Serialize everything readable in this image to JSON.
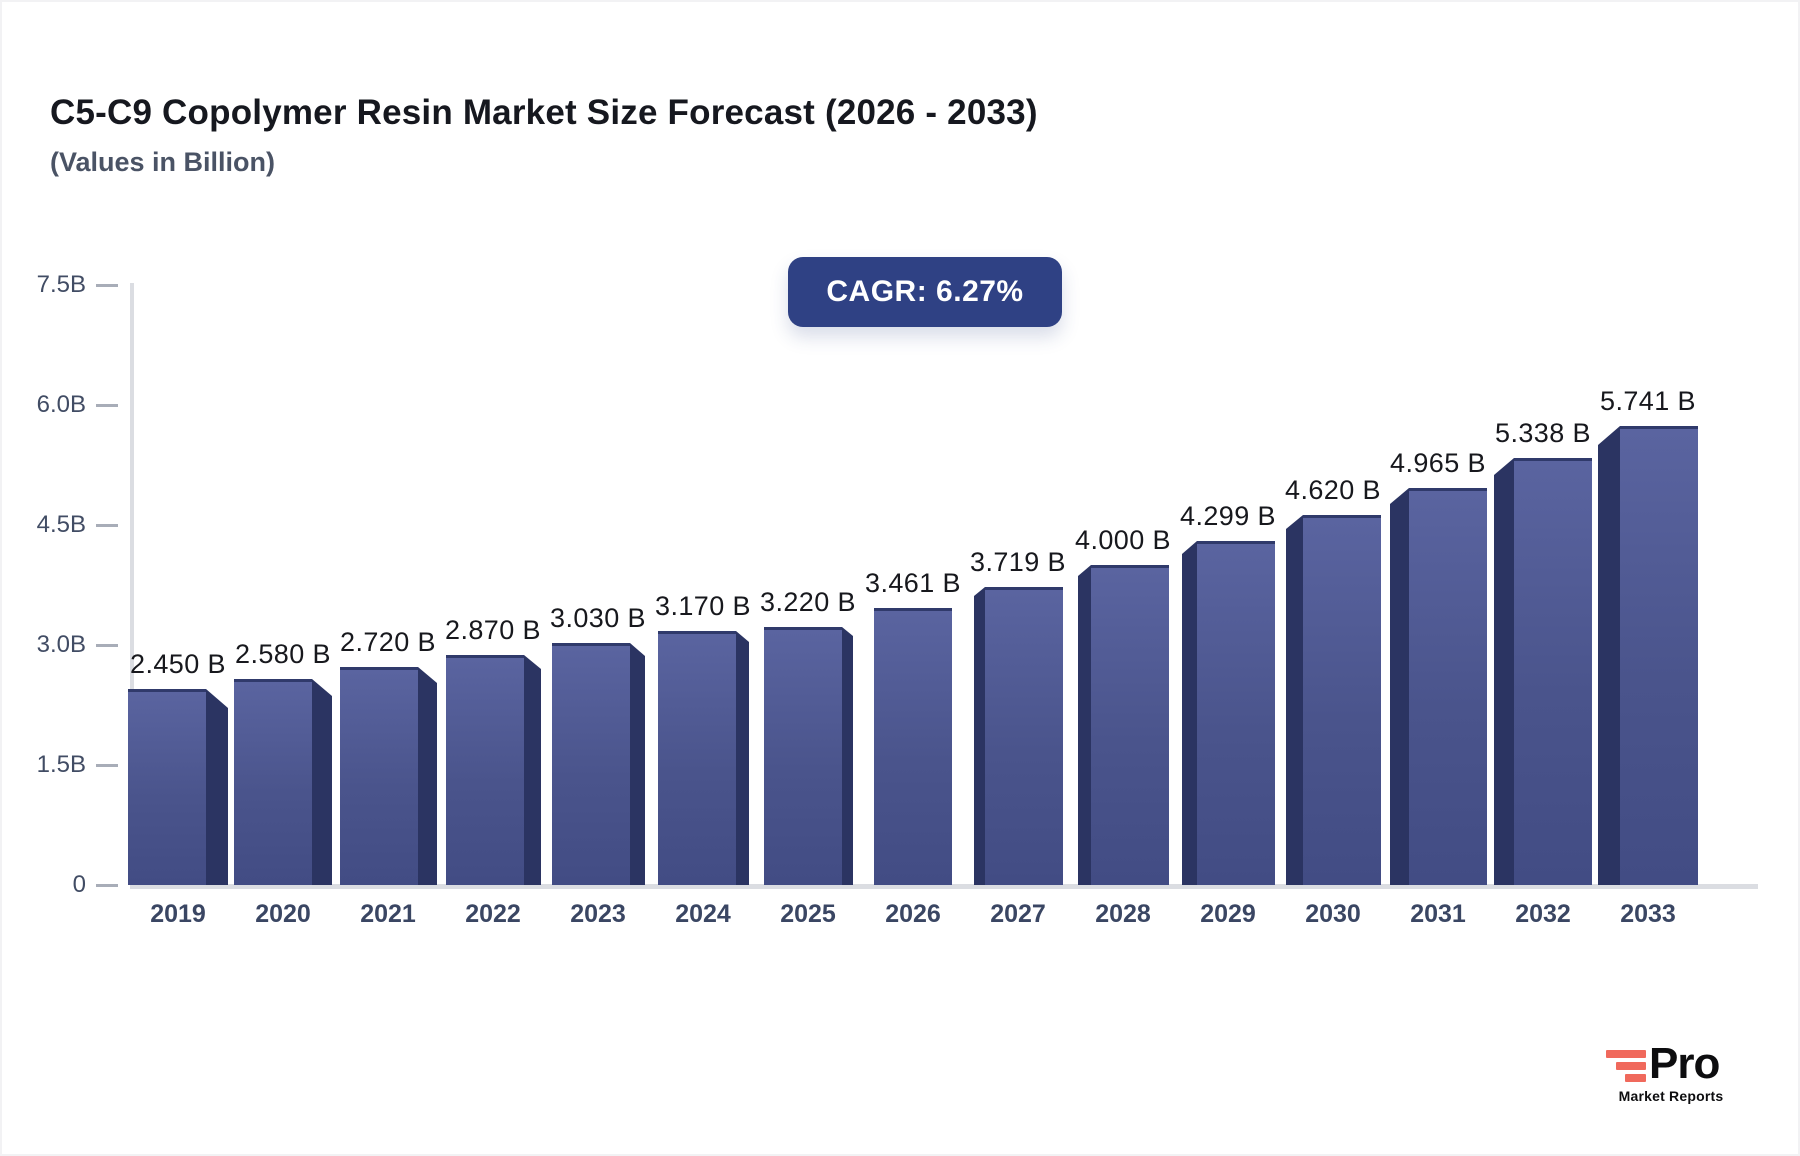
{
  "title": "C5-C9 Copolymer Resin Market Size Forecast (2026 - 2033)",
  "subtitle": "(Values in Billion)",
  "badge": {
    "label": "CAGR: 6.27%"
  },
  "logo": {
    "brand": "Pro",
    "tagline": "Market Reports"
  },
  "colors": {
    "bar_face_top": "#5A64A0",
    "bar_face_bottom": "#424C84",
    "bar_side": "#2B3462",
    "bar_top_edge": "#303A6B",
    "axis_line": "#DBDDE2",
    "tick_mark": "#A8ADB8",
    "y_label": "#414C64",
    "x_label": "#3A4663",
    "value_label": "#17181D",
    "title": "#16181F",
    "subtitle": "#4A5365",
    "badge_bg": "#2F4184",
    "badge_text": "#FFFFFF",
    "logo_red": "#F0695C"
  },
  "chart_data": {
    "type": "bar",
    "title": "C5-C9 Copolymer Resin Market Size Forecast (2026 - 2033)",
    "subtitle": "(Values in Billion)",
    "cagr": "6.27%",
    "unit": "Billion",
    "categories": [
      "2019",
      "2020",
      "2021",
      "2022",
      "2023",
      "2024",
      "2025",
      "2026",
      "2027",
      "2028",
      "2029",
      "2030",
      "2031",
      "2032",
      "2033"
    ],
    "values": [
      2.45,
      2.58,
      2.72,
      2.87,
      3.03,
      3.17,
      3.22,
      3.461,
      3.719,
      4.0,
      4.299,
      4.62,
      4.965,
      5.338,
      5.741
    ],
    "value_labels": [
      "2.450 B",
      "2.580 B",
      "2.720 B",
      "2.870 B",
      "3.030 B",
      "3.170 B",
      "3.220 B",
      "3.461 B",
      "3.719 B",
      "4.000 B",
      "4.299 B",
      "4.620 B",
      "4.965 B",
      "5.338 B",
      "5.741 B"
    ],
    "y_ticks": [
      {
        "label": "7.5B",
        "value": 7.5
      },
      {
        "label": "6.0B",
        "value": 6.0
      },
      {
        "label": "4.5B",
        "value": 4.5
      },
      {
        "label": "3.0B",
        "value": 3.0
      },
      {
        "label": "1.5B",
        "value": 1.5
      },
      {
        "label": "0",
        "value": 0.0
      }
    ],
    "ylim": [
      0,
      7.5
    ],
    "grid": false,
    "legend": false,
    "style": "3d-perspective-bars"
  }
}
